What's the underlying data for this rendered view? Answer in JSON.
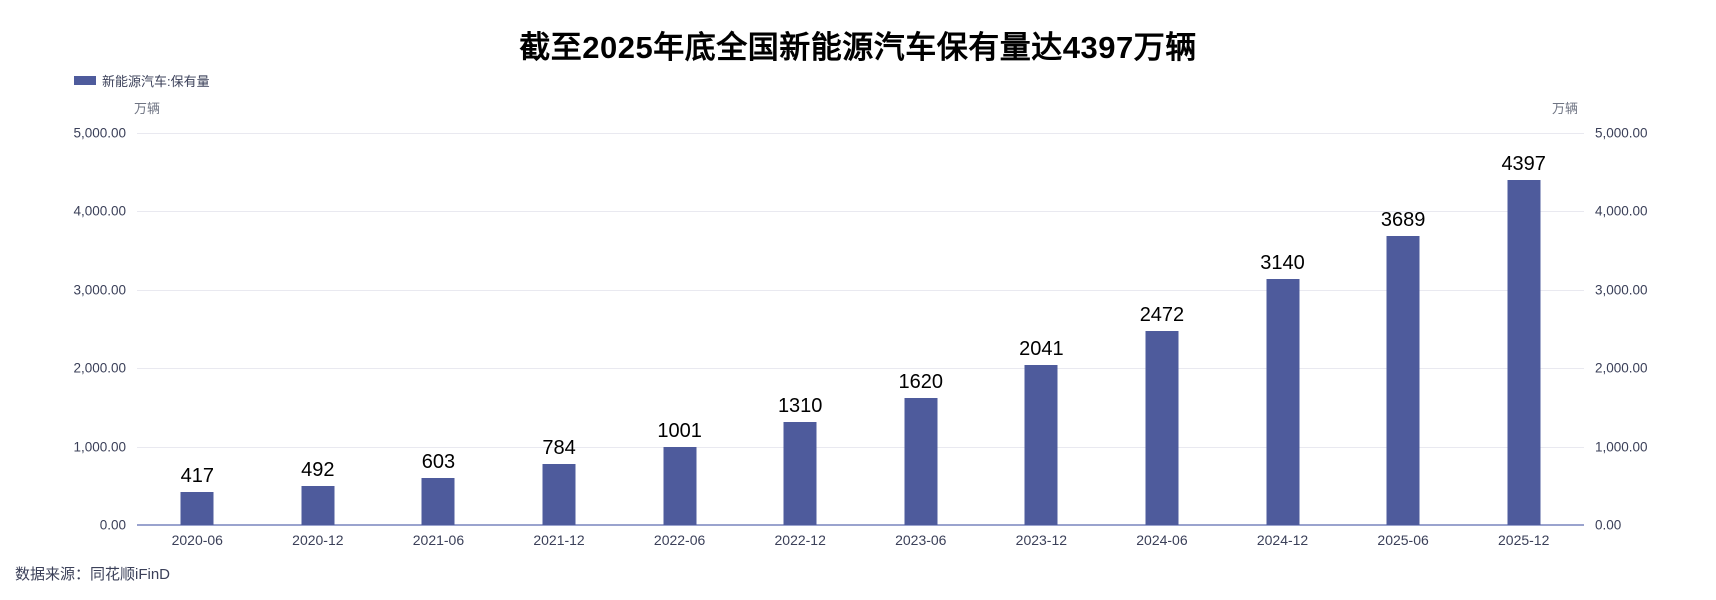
{
  "chart": {
    "title": "截至2025年底全国新能源汽车保有量达4397万辆",
    "legend": "新能源汽车:保有量",
    "unit": "万辆",
    "source": "数据来源：同花顺iFinD"
  },
  "chart_data": {
    "type": "bar",
    "title": "截至2025年底全国新能源汽车保有量达4397万辆",
    "legend_entries": [
      "新能源汽车:保有量"
    ],
    "legend_position": "top-left",
    "ylabel": "万辆",
    "xlabel": "",
    "categories": [
      "2020-06",
      "2020-12",
      "2021-06",
      "2021-12",
      "2022-06",
      "2022-12",
      "2023-06",
      "2023-12",
      "2024-06",
      "2024-12",
      "2025-06",
      "2025-12"
    ],
    "values": [
      417,
      492,
      603,
      784,
      1001,
      1310,
      1620,
      2041,
      2472,
      3140,
      3689,
      4397
    ],
    "ylim": [
      0,
      5000
    ],
    "ytick_step": 1000,
    "ytick_labels": [
      "0.00",
      "1,000.00",
      "2,000.00",
      "3,000.00",
      "4,000.00",
      "5,000.00"
    ],
    "grid": true,
    "dual_y_axis": true,
    "colors": {
      "bar": "#4e5b9c",
      "axis_line": "#9aa3ce",
      "grid_line": "#e9e9f0",
      "tick_text": "#3b4059",
      "value_label_text": "#000000"
    }
  }
}
